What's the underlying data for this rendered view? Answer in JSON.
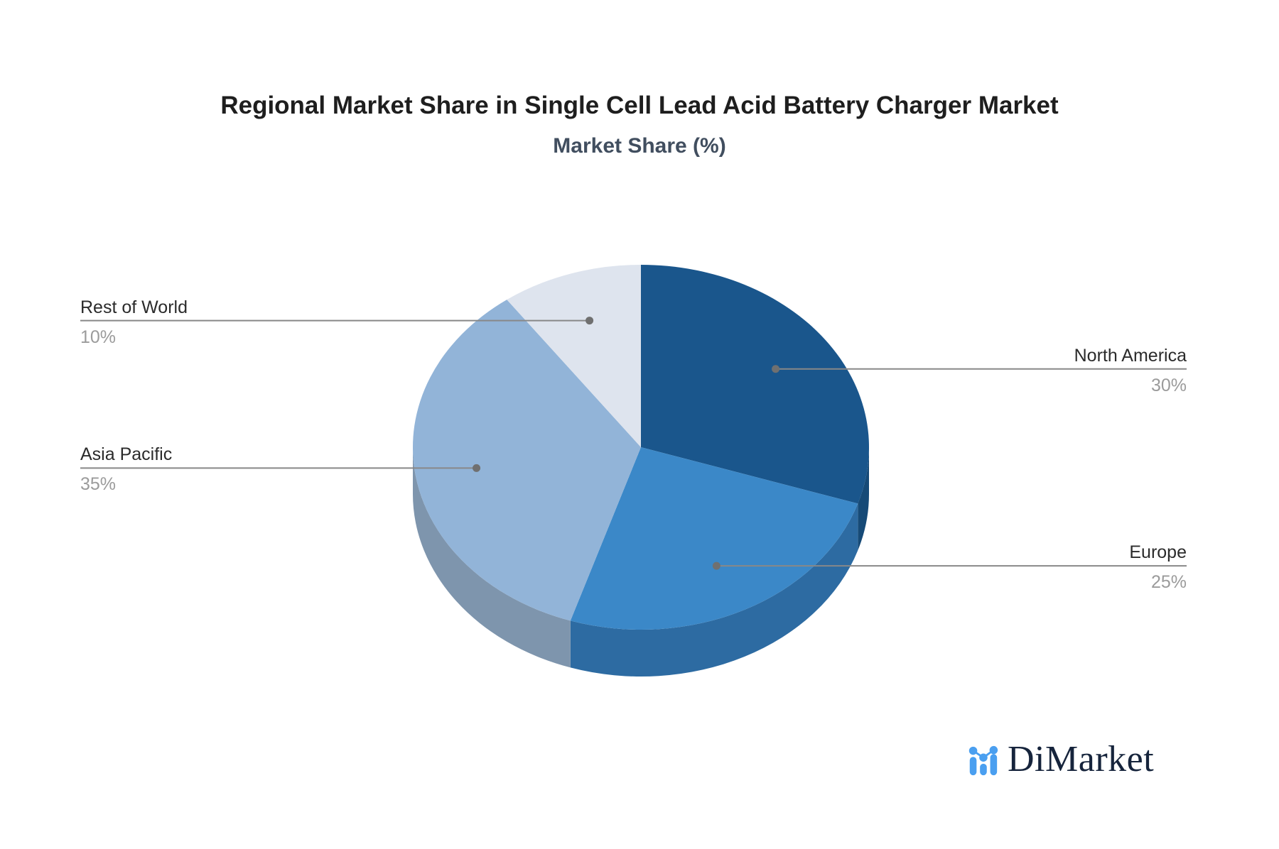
{
  "chart_data": {
    "type": "pie",
    "effect": "3d",
    "title": "Regional Market Share in Single Cell Lead Acid Battery Charger Market",
    "subtitle": "Market Share (%)",
    "unit": "%",
    "legend_position": "none",
    "slices": [
      {
        "label": "North America",
        "value": 30,
        "display": "30%",
        "color": "#1A568C",
        "side_color": "#164A77",
        "label_side": "right"
      },
      {
        "label": "Europe",
        "value": 25,
        "display": "25%",
        "color": "#3B88C8",
        "side_color": "#2D6BA2",
        "label_side": "right"
      },
      {
        "label": "Asia Pacific",
        "value": 35,
        "display": "35%",
        "color": "#92B4D8",
        "side_color": "#7E95AD",
        "label_side": "left"
      },
      {
        "label": "Rest of World",
        "value": 10,
        "display": "10%",
        "color": "#DEE4EE",
        "side_color": "#B9C4D4",
        "label_side": "left"
      }
    ],
    "label_text_color": "#2B2B2B",
    "value_text_color": "#9B9B9B",
    "leader_line_color": "#888888",
    "leader_dot_color": "#707070"
  },
  "branding": {
    "logo_text": "DiMarket",
    "logo_text_color": "#16243C",
    "logo_icon": "bar-chart-with-trend-dots-icon",
    "logo_icon_color": "#4A9FF0"
  }
}
